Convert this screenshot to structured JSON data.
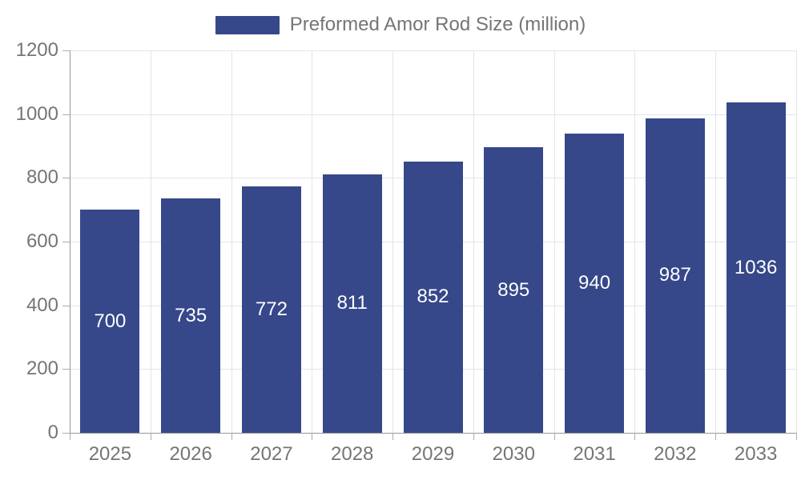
{
  "chart_data": {
    "type": "bar",
    "title": "",
    "legend": "Preformed Amor Rod Size (million)",
    "categories": [
      "2025",
      "2026",
      "2027",
      "2028",
      "2029",
      "2030",
      "2031",
      "2032",
      "2033"
    ],
    "values": [
      700,
      735,
      772,
      811,
      852,
      895,
      940,
      987,
      1036
    ],
    "xlabel": "",
    "ylabel": "",
    "ylim": [
      0,
      1200
    ],
    "ytick_step": 200,
    "ytick_labels": [
      "0",
      "200",
      "400",
      "600",
      "800",
      "1000",
      "1200"
    ],
    "grid": true,
    "legend_position": "top-center",
    "value_label_position": "inside-center"
  },
  "colors": {
    "bar": "#36488A",
    "grid_line": "#E2E4EC",
    "axis_line": "#97979C",
    "tick_mark": "#ADADB3",
    "axis_label": "#757575",
    "value_label": "#FFFFFF",
    "background": "#FFFFFF"
  }
}
